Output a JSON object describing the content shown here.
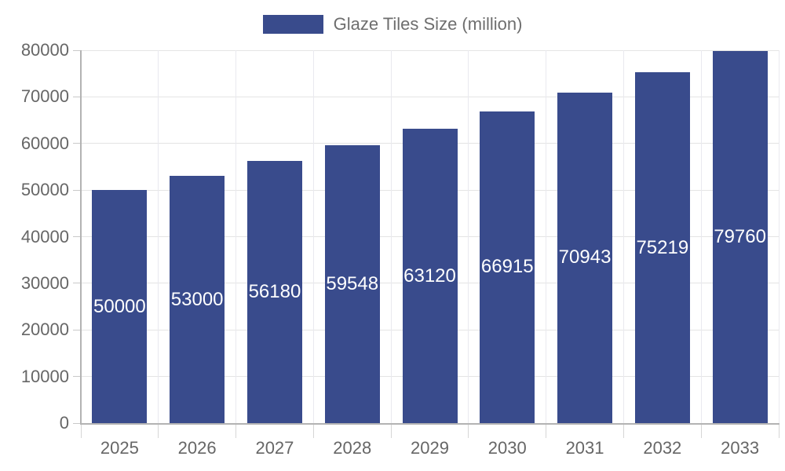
{
  "legend": {
    "label": "Glaze Tiles Size (million)"
  },
  "colors": {
    "bar": "#394b8c",
    "legend_text": "#6e6e6e",
    "tick_text": "#666666",
    "axis_line": "#b3b3b3",
    "grid_line": "#e4e4e4",
    "value_label_text": "#ffffff",
    "background": "#ffffff"
  },
  "chart_data": {
    "type": "bar",
    "title": "",
    "xlabel": "",
    "ylabel": "",
    "series_name": "Glaze Tiles Size (million)",
    "categories": [
      "2025",
      "2026",
      "2027",
      "2028",
      "2029",
      "2030",
      "2031",
      "2032",
      "2033"
    ],
    "values": [
      50000,
      53000,
      56180,
      59548,
      63120,
      66915,
      70943,
      75219,
      79760
    ],
    "value_labels": [
      "50000",
      "53000",
      "56180",
      "59548",
      "63120",
      "66915",
      "70943",
      "75219",
      "79760"
    ],
    "value_label_position": "inside-center",
    "ylim": [
      0,
      80000
    ],
    "ytick_step": 10000,
    "ytick_labels": [
      "0",
      "10000",
      "20000",
      "30000",
      "40000",
      "50000",
      "60000",
      "70000",
      "80000"
    ],
    "grid": true,
    "legend_position": "top-center",
    "bar_color": "#394b8c"
  }
}
